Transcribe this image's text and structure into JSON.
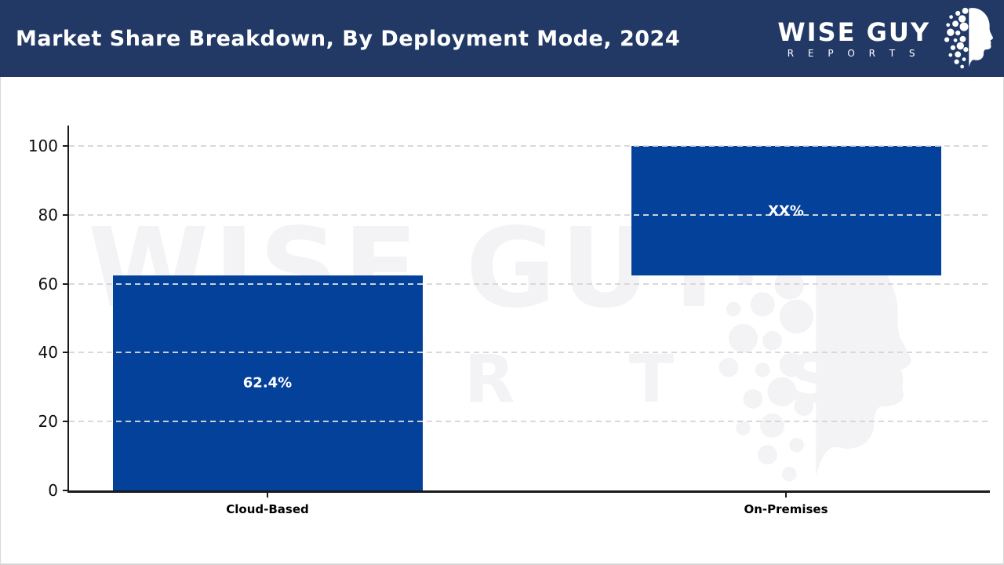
{
  "header": {
    "title": "Market Share Breakdown, By Deployment Mode, 2024",
    "bg_color": "#223965",
    "logo": {
      "line1": "WISE GUY",
      "line2": "R E P O R T S"
    }
  },
  "watermark": {
    "line1": "WISE GUY",
    "line2": "R T S"
  },
  "chart_data": {
    "type": "bar",
    "title": "Market Share Breakdown, By Deployment Mode, 2024",
    "categories": [
      "Cloud-Based",
      "On-Premises"
    ],
    "bars": [
      {
        "category": "Cloud-Based",
        "start": 0,
        "end": 62.4,
        "label": "62.4%"
      },
      {
        "category": "On-Premises",
        "start": 62.4,
        "end": 100,
        "label": "XX%"
      }
    ],
    "ylim": [
      0,
      100
    ],
    "yticks": [
      0,
      20,
      40,
      60,
      80,
      100
    ],
    "grid": "dashed-horizontal",
    "legend": "none",
    "colors": {
      "bar": "#04419B",
      "grid": "#d7d7d7",
      "axis": "#1a1a1a",
      "bar_label_text": "#ffffff",
      "watermark": "#f3f3f5"
    }
  }
}
